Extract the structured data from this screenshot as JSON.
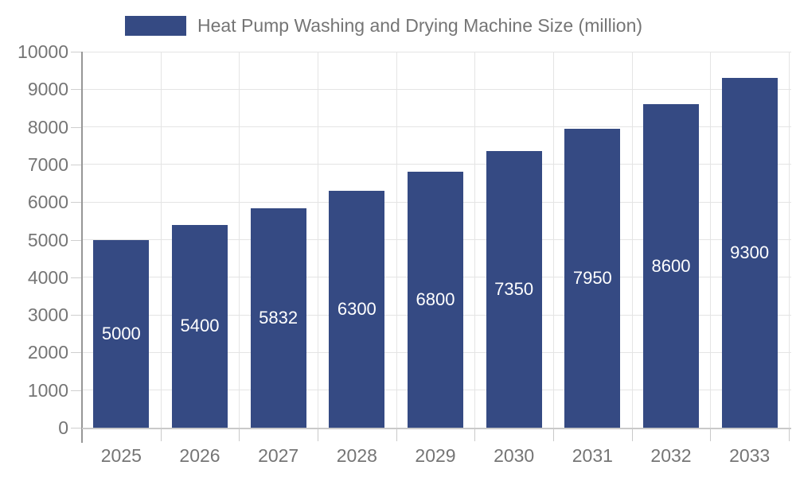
{
  "legend": {
    "items": [
      {
        "label": "Heat Pump Washing and Drying Machine Size (million)",
        "swatch_color": "#354A83"
      }
    ]
  },
  "chart_data": {
    "type": "bar",
    "title": "Heat Pump Washing and Drying Machine Size (million)",
    "categories": [
      "2025",
      "2026",
      "2027",
      "2028",
      "2029",
      "2030",
      "2031",
      "2032",
      "2033"
    ],
    "series": [
      {
        "name": "Heat Pump Washing and Drying Machine Size (million)",
        "values": [
          5000,
          5400,
          5832,
          6300,
          6800,
          7350,
          7950,
          8600,
          9300
        ],
        "color": "#354A83"
      }
    ],
    "xlabel": "",
    "ylabel": "",
    "ylim": [
      0,
      10000
    ],
    "yticks": [
      0,
      1000,
      2000,
      3000,
      4000,
      5000,
      6000,
      7000,
      8000,
      9000,
      10000
    ],
    "grid": true,
    "legend_position": "top",
    "value_labels": {
      "position": "inside-center",
      "color": "#ffffff"
    }
  },
  "style": {
    "bar_color": "#354A83",
    "grid_color": "#e4e4e4",
    "y_axis_line_color": "#979797",
    "x_axis_line_color": "#c9c9c9",
    "tick_color": "#c9c9c9",
    "axis_label_color": "#757575",
    "value_label_color": "#ffffff",
    "background": "#ffffff"
  }
}
